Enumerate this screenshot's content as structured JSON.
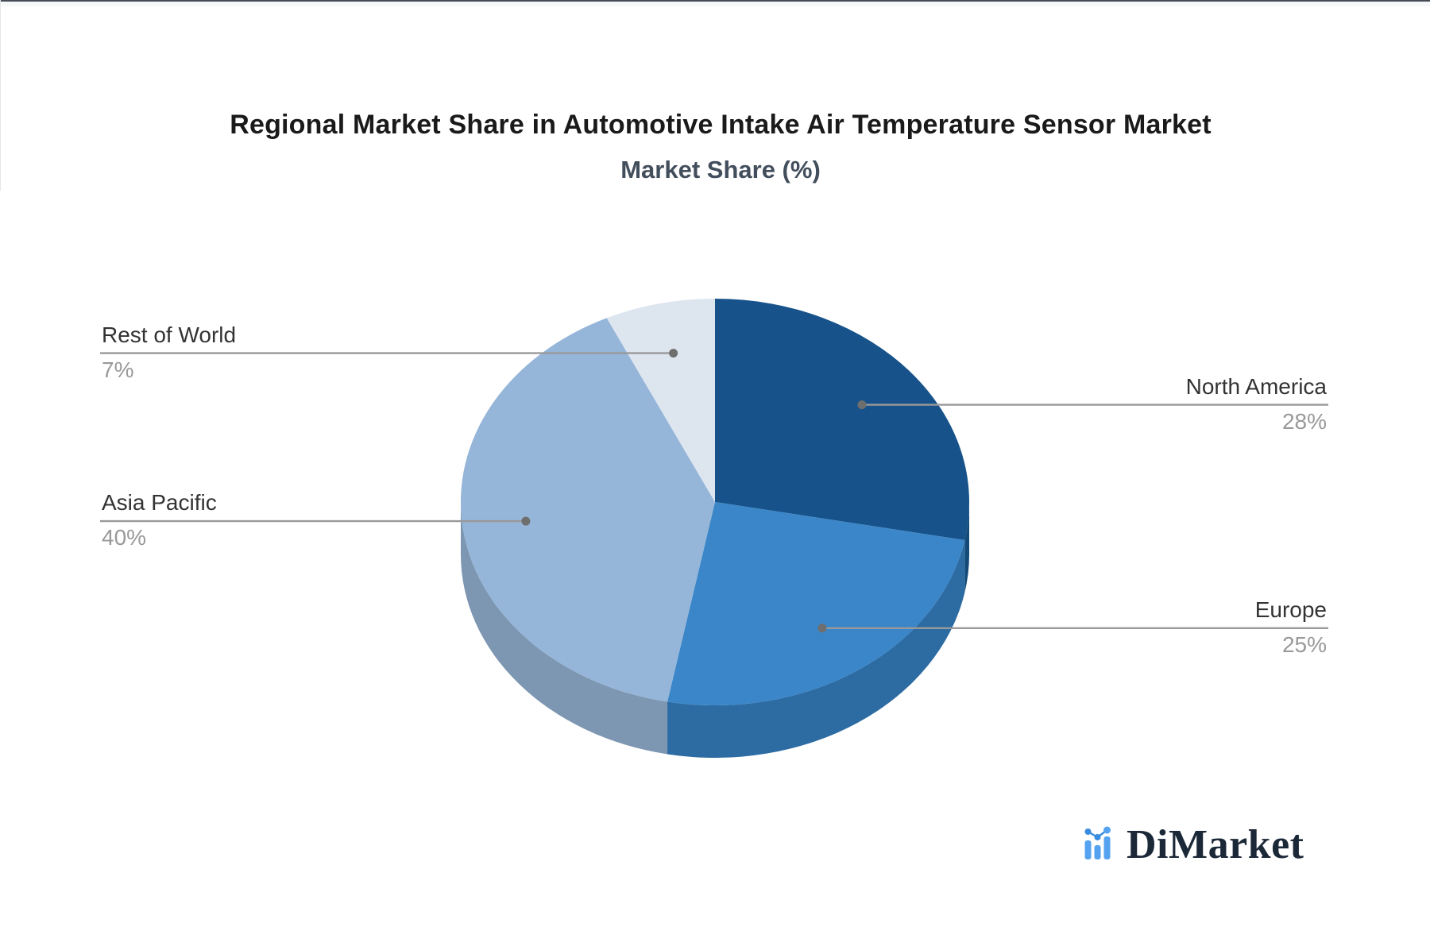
{
  "header": {
    "title": "Regional Market Share in Automotive Intake Air Temperature Sensor Market",
    "subtitle": "Market Share (%)"
  },
  "chart_data": {
    "type": "pie",
    "title": "Regional Market Share in Automotive Intake Air Temperature Sensor Market",
    "subtitle": "Market Share (%)",
    "unit": "%",
    "style_3d": true,
    "direction": "clockwise",
    "start_angle_deg": 0,
    "legend_position": "none",
    "categories": [
      "North America",
      "Europe",
      "Asia Pacific",
      "Rest of World"
    ],
    "values": [
      28,
      25,
      40,
      7
    ],
    "series": [
      {
        "name": "North America",
        "value": 28,
        "value_label": "28%",
        "color": "#17538a",
        "side_color": "#134a77",
        "label_side": "right"
      },
      {
        "name": "Europe",
        "value": 25,
        "value_label": "25%",
        "color": "#3a86c8",
        "side_color": "#2d6ba3",
        "label_side": "right"
      },
      {
        "name": "Asia Pacific",
        "value": 40,
        "value_label": "40%",
        "color": "#95b5d9",
        "side_color": "#7d96b1",
        "label_side": "left"
      },
      {
        "name": "Rest of World",
        "value": 7,
        "value_label": "7%",
        "color": "#dde5ef",
        "side_color": "#b9c4d4",
        "label_side": "left"
      }
    ],
    "connector_color": "#999999",
    "connector_dot_color": "#6e6e6e",
    "name_color": "#333333",
    "value_color": "#999999"
  },
  "branding": {
    "logo_text": "DiMarket",
    "logo_icon": "mini-bar-line-chart",
    "icon_color": "#55a3f0",
    "icon_accent_color": "#3a8ce0",
    "text_color": "#1b2838"
  }
}
